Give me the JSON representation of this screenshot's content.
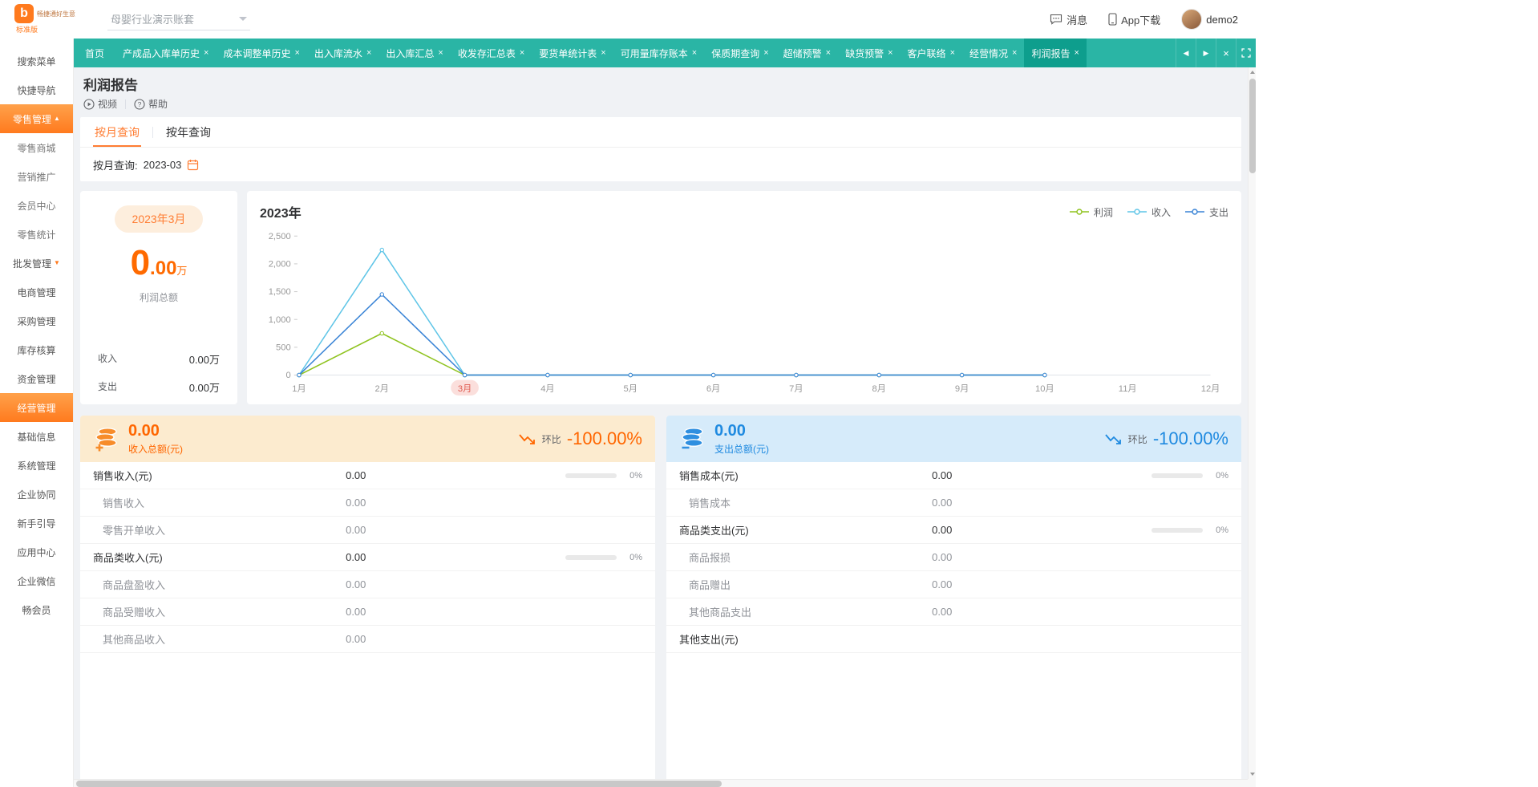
{
  "icons": {
    "close": "×",
    "caret_up": "▲",
    "caret_down": "▼",
    "arrow_left": "◀",
    "arrow_right": "▶",
    "question": "?"
  },
  "colors": {
    "teal": "#2ab5a5",
    "teal_active": "#0e9e8d",
    "orange": "#ff7a1e",
    "orange_deep": "#ff6600",
    "blue": "#1f8ae0",
    "income_header_bg": "#fcebcf",
    "expense_header_bg": "#d6ebfa"
  },
  "topbar": {
    "brand": "畅捷通好生意",
    "edition": "标准版",
    "account": "母婴行业演示账套",
    "messages": "消息",
    "app_download": "App下载",
    "username": "demo2"
  },
  "tabbar": {
    "home": "首页",
    "tabs": [
      {
        "label": "产成品入库单历史"
      },
      {
        "label": "成本调整单历史"
      },
      {
        "label": "出入库流水"
      },
      {
        "label": "出入库汇总"
      },
      {
        "label": "收发存汇总表"
      },
      {
        "label": "要货单统计表"
      },
      {
        "label": "可用量库存账本"
      },
      {
        "label": "保质期查询"
      },
      {
        "label": "超储预警"
      },
      {
        "label": "缺货预警"
      },
      {
        "label": "客户联络"
      },
      {
        "label": "经营情况"
      },
      {
        "label": "利润报告"
      }
    ]
  },
  "sidebar": {
    "items": [
      {
        "label": "搜索菜单"
      },
      {
        "label": "快捷导航"
      },
      {
        "label": "零售管理"
      },
      {
        "label": "零售商城"
      },
      {
        "label": "营销推广"
      },
      {
        "label": "会员中心"
      },
      {
        "label": "零售统计"
      },
      {
        "label": "批发管理"
      },
      {
        "label": "电商管理"
      },
      {
        "label": "采购管理"
      },
      {
        "label": "库存核算"
      },
      {
        "label": "资金管理"
      },
      {
        "label": "经营管理"
      },
      {
        "label": "基础信息"
      },
      {
        "label": "系统管理"
      },
      {
        "label": "企业协同"
      },
      {
        "label": "新手引导"
      },
      {
        "label": "应用中心"
      },
      {
        "label": "企业微信"
      },
      {
        "label": "畅会员"
      }
    ]
  },
  "page": {
    "title": "利润报告",
    "video": "视频",
    "help": "帮助",
    "tab_month": "按月查询",
    "tab_year": "按年查询",
    "filter_label": "按月查询:",
    "filter_value": "2023-03"
  },
  "summary": {
    "period": "2023年3月",
    "value_int": "0",
    "value_dec": ".00",
    "unit": "万",
    "label": "利润总额",
    "income_label": "收入",
    "income_value": "0.00万",
    "expense_label": "支出",
    "expense_value": "0.00万"
  },
  "chart_data": {
    "type": "line",
    "title": "2023年",
    "categories": [
      "1月",
      "2月",
      "3月",
      "4月",
      "5月",
      "6月",
      "7月",
      "8月",
      "9月",
      "10月",
      "11月",
      "12月"
    ],
    "highlight_category": "3月",
    "ylim": [
      0,
      2500
    ],
    "yticks": [
      "0",
      "500",
      "1,000",
      "1,500",
      "2,000",
      "2,500"
    ],
    "grid": false,
    "legend_position": "top-right",
    "series": [
      {
        "name": "利润",
        "color": "#8fc31f",
        "values": [
          0,
          750,
          0,
          0,
          0,
          0,
          0,
          0,
          0,
          0,
          null,
          null
        ]
      },
      {
        "name": "收入",
        "color": "#5fc5e7",
        "values": [
          0,
          2250,
          0,
          0,
          0,
          0,
          0,
          0,
          0,
          0,
          null,
          null
        ]
      },
      {
        "name": "支出",
        "color": "#3a84d6",
        "values": [
          0,
          1450,
          0,
          0,
          0,
          0,
          0,
          0,
          0,
          0,
          null,
          null
        ]
      }
    ]
  },
  "income_card": {
    "total": "0.00",
    "total_label": "收入总额(元)",
    "mom_label": "环比",
    "mom_value": "-100.00%",
    "rows": [
      {
        "label": "销售收入(元)",
        "value": "0.00",
        "pct": "0%"
      },
      {
        "label": "销售收入",
        "value": "0.00"
      },
      {
        "label": "零售开单收入",
        "value": "0.00"
      },
      {
        "label": "商品类收入(元)",
        "value": "0.00",
        "pct": "0%"
      },
      {
        "label": "商品盘盈收入",
        "value": "0.00"
      },
      {
        "label": "商品受赠收入",
        "value": "0.00"
      },
      {
        "label": "其他商品收入",
        "value": "0.00"
      }
    ]
  },
  "expense_card": {
    "total": "0.00",
    "total_label": "支出总额(元)",
    "mom_label": "环比",
    "mom_value": "-100.00%",
    "rows": [
      {
        "label": "销售成本(元)",
        "value": "0.00",
        "pct": "0%"
      },
      {
        "label": "销售成本",
        "value": "0.00"
      },
      {
        "label": "商品类支出(元)",
        "value": "0.00",
        "pct": "0%"
      },
      {
        "label": "商品报损",
        "value": "0.00"
      },
      {
        "label": "商品赠出",
        "value": "0.00"
      },
      {
        "label": "其他商品支出",
        "value": "0.00"
      },
      {
        "label": "其他支出(元)",
        "value": ""
      }
    ]
  }
}
